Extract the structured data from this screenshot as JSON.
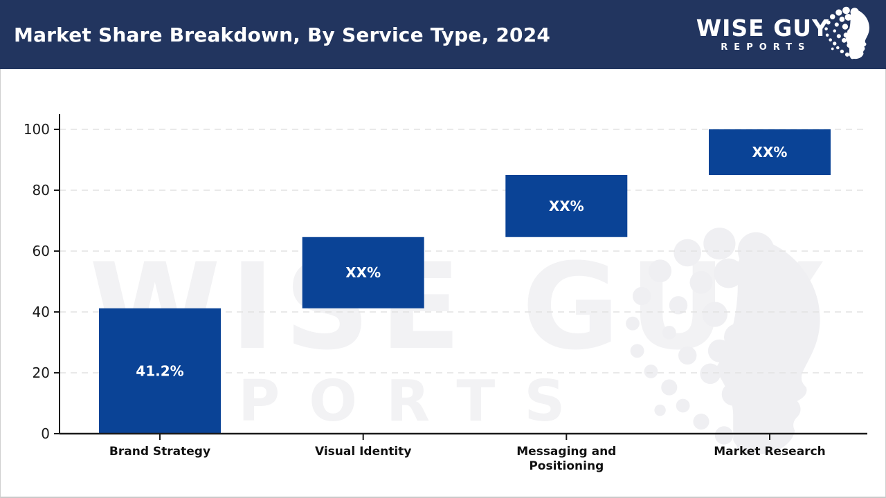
{
  "header": {
    "title": "Market Share Breakdown, By Service Type, 2024",
    "background_color": "#22355f",
    "logo": {
      "wordmark": "WISE GUY",
      "subtext": "REPORTS",
      "icon": "dotted-face-profile"
    }
  },
  "watermark": {
    "line1": "WISE GUY",
    "line2": "REPORTS",
    "icon": "dotted-face-profile"
  },
  "chart_data": {
    "type": "bar",
    "subtype": "waterfall",
    "title": "Market Share Breakdown, By Service Type, 2024",
    "categories": [
      "Brand Strategy",
      "Visual Identity",
      "Messaging and Positioning",
      "Market Research"
    ],
    "category_label_lines": [
      [
        "Brand Strategy"
      ],
      [
        "Visual Identity"
      ],
      [
        "Messaging and",
        "Positioning"
      ],
      [
        "Market Research"
      ]
    ],
    "segments": [
      {
        "category": "Brand Strategy",
        "start": 0,
        "end": 41.2,
        "label": "41.2%"
      },
      {
        "category": "Visual Identity",
        "start": 41.2,
        "end": 64.6,
        "label": "XX%"
      },
      {
        "category": "Messaging and Positioning",
        "start": 64.6,
        "end": 85.0,
        "label": "XX%"
      },
      {
        "category": "Market Research",
        "start": 85.0,
        "end": 100.0,
        "label": "XX%"
      }
    ],
    "segment_sizes_implied": [
      41.2,
      23.4,
      20.4,
      15.0
    ],
    "yticks": [
      0,
      20,
      40,
      60,
      80,
      100
    ],
    "ylim": [
      0,
      105
    ],
    "xlabel": "",
    "ylabel": "",
    "legend": "none",
    "grid": {
      "axis": "y",
      "style": "dashed",
      "color": "#e2e2e2"
    },
    "bar_color": "#0a4396",
    "bar_label_color": "#ffffff",
    "axis_color": "#1a1a1a"
  }
}
